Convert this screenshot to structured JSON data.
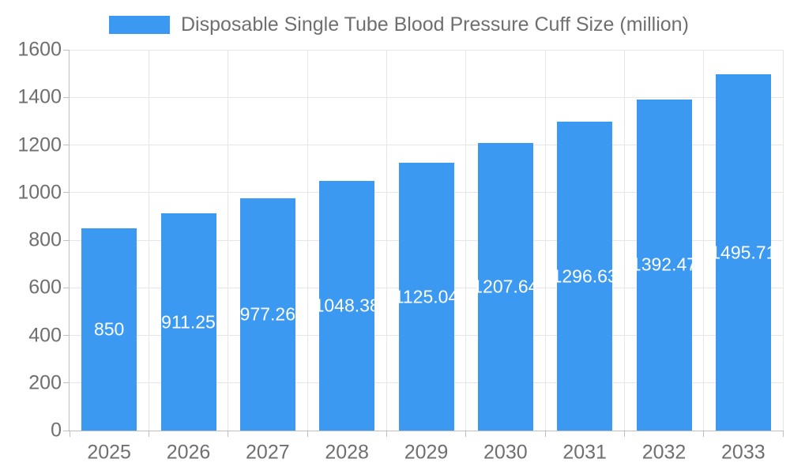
{
  "legend": {
    "swatch": "bar-series-swatch"
  },
  "colors": {
    "bar": "#3B99F1",
    "axis_label": "#6F6F6F",
    "value_label": "#FFFFFF",
    "gridline": "#E6E6E6",
    "axis_line": "#BFBFBF"
  },
  "chart_data": {
    "type": "bar",
    "title": "Disposable Single Tube Blood Pressure Cuff Size (million)",
    "categories": [
      "2025",
      "2026",
      "2027",
      "2028",
      "2029",
      "2030",
      "2031",
      "2032",
      "2033"
    ],
    "values": [
      850,
      911.25,
      977.26,
      1048.38,
      1125.04,
      1207.64,
      1296.63,
      1392.47,
      1495.71
    ],
    "value_labels": [
      "850",
      "911.25",
      "977.26",
      "1048.38",
      "1125.04",
      "1207.64",
      "1296.63",
      "1392.47",
      "1495.71"
    ],
    "xlabel": "",
    "ylabel": "",
    "ylim": [
      0,
      1600
    ],
    "ytick_step": 200,
    "grid": true,
    "legend_position": "top"
  }
}
